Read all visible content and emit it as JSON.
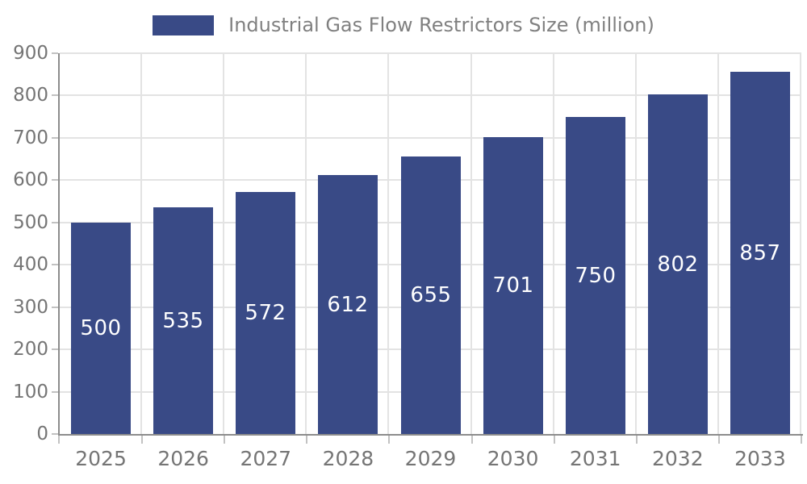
{
  "legend": {
    "label": "Industrial Gas Flow Restrictors Size (million)"
  },
  "colors": {
    "bar": "#394a86",
    "bar_label": "#ffffff",
    "grid": "#e3e3e3",
    "axis": "#8c8c8c",
    "tick": "#c2c2c2",
    "tick_label": "#757575",
    "legend_text": "#808080"
  },
  "chart_data": {
    "type": "bar",
    "title": "Industrial Gas Flow Restrictors Size (million)",
    "categories": [
      "2025",
      "2026",
      "2027",
      "2028",
      "2029",
      "2030",
      "2031",
      "2032",
      "2033"
    ],
    "values": [
      500,
      535,
      572,
      612,
      655,
      701,
      750,
      802,
      857
    ],
    "xlabel": "",
    "ylabel": "",
    "ylim": [
      0,
      900
    ],
    "ytick_step": 100,
    "grid": true,
    "legend_position": "top-center",
    "bar_labels_shown": true
  }
}
